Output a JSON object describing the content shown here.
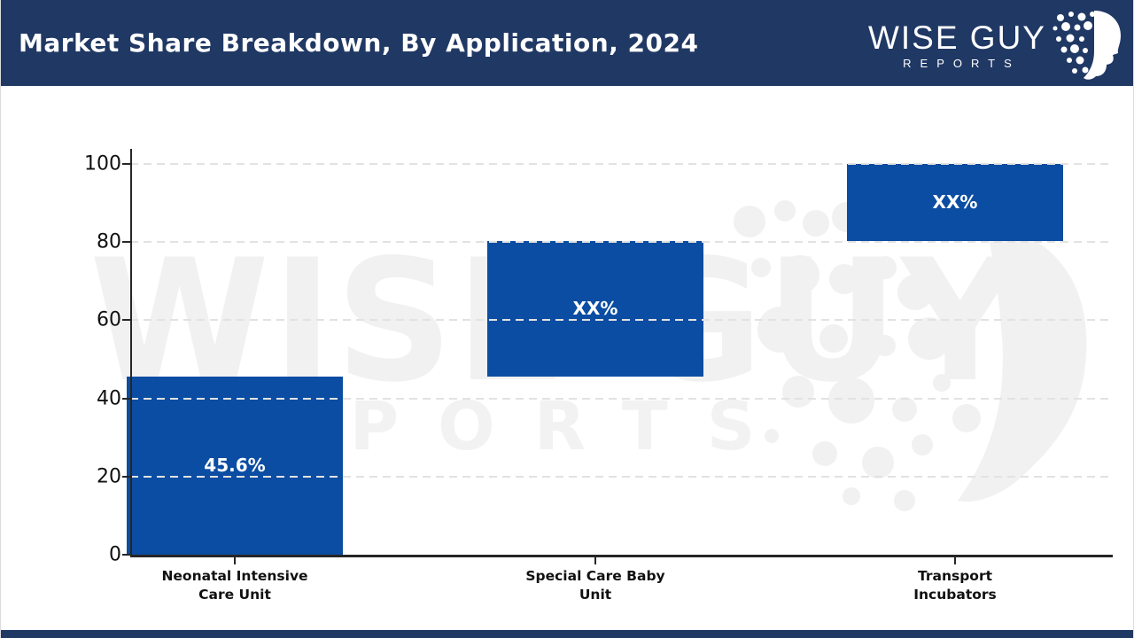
{
  "header": {
    "title": "Market Share Breakdown, By Application, 2024",
    "bg_color": "#203864",
    "text_color": "#ffffff"
  },
  "logo": {
    "name": "WISE GUY",
    "sub": "REPORTS",
    "head_icon": "dotted-head-profile"
  },
  "watermark": {
    "line1": "WISE GUY",
    "line2": "REPORTS"
  },
  "chart_data": {
    "type": "bar",
    "subtype": "waterfall",
    "title": "Market Share Breakdown, By Application, 2024",
    "xlabel": "",
    "ylabel": "",
    "categories": [
      [
        "Neonatal Intensive",
        "Care Unit"
      ],
      [
        "Special Care Baby",
        "Unit"
      ],
      [
        "Transport",
        "Incubators"
      ]
    ],
    "segments": [
      {
        "start": 0,
        "end": 45.6,
        "label": "45.6%"
      },
      {
        "start": 45.6,
        "end": 80.3,
        "label": "XX%"
      },
      {
        "start": 80.3,
        "end": 100,
        "label": "XX%"
      }
    ],
    "yticks": [
      0,
      20,
      40,
      60,
      80,
      100
    ],
    "ylim": [
      0,
      104
    ],
    "grid": "horizontal-dashed",
    "legend": "none",
    "bar_color": "#0b4da2",
    "bar_label_color": "#ffffff",
    "axis_color": "#262626",
    "gridline_color": "#e2e2e2"
  }
}
